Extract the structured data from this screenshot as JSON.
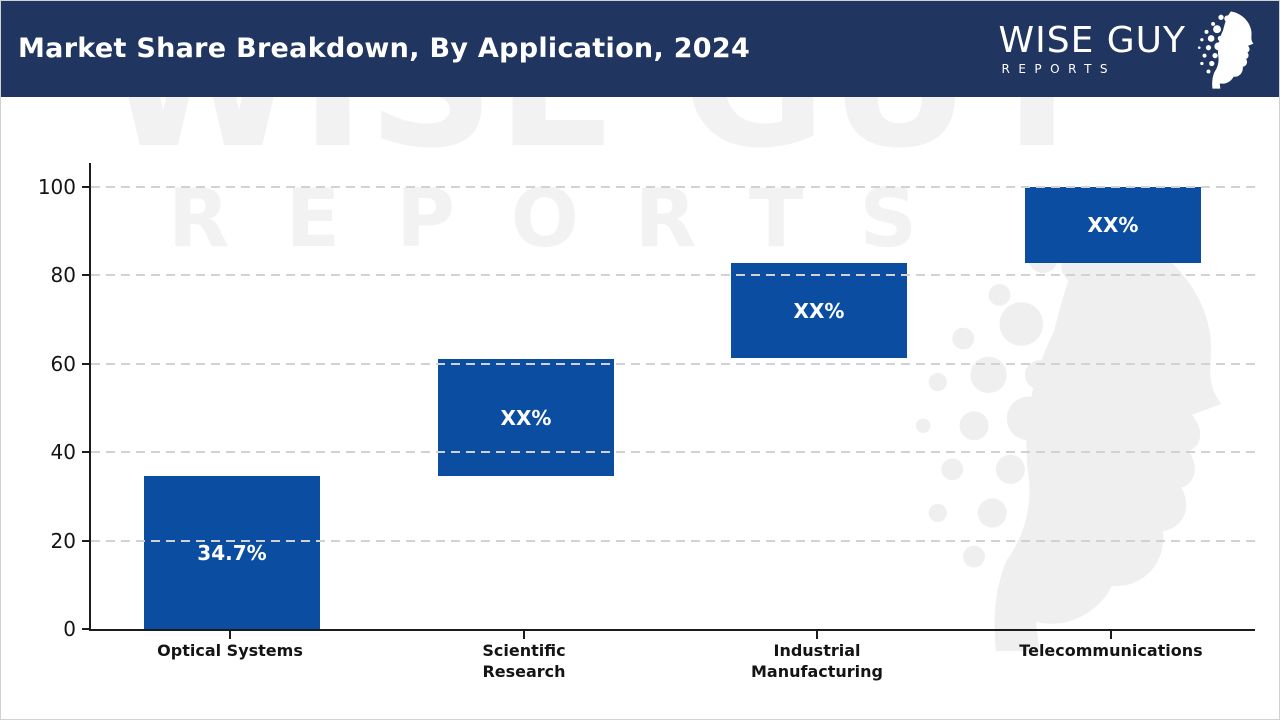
{
  "page": {
    "background": "#ffffff",
    "border_color": "#d2d2d2"
  },
  "header": {
    "bg_color": "#20355f",
    "title": "Market Share Breakdown, By Application, 2024",
    "logo": {
      "name": "WISE GUY",
      "sub": "REPORTS"
    }
  },
  "watermark": {
    "line1": "WISE GUY",
    "line2": "REPORTS"
  },
  "chart_data": {
    "type": "bar",
    "variant": "floating-segment waterfall",
    "title": "Market Share Breakdown, By Application, 2024",
    "categories": [
      "Optical Systems",
      "Scientific Research",
      "Industrial Manufacturing",
      "Telecommunications"
    ],
    "category_label_lines": [
      [
        "Optical Systems"
      ],
      [
        "Scientific",
        "Research"
      ],
      [
        "Industrial",
        "Manufacturing"
      ],
      [
        "Telecommunications"
      ]
    ],
    "series": [
      {
        "name": "Market share (%)",
        "segments": [
          {
            "category": "Optical Systems",
            "start": 0,
            "end": 34.7,
            "label": "34.7%"
          },
          {
            "category": "Scientific Research",
            "start": 34.7,
            "end": 61.2,
            "label": "XX%"
          },
          {
            "category": "Industrial Manufacturing",
            "start": 61.2,
            "end": 82.8,
            "label": "XX%"
          },
          {
            "category": "Telecommunications",
            "start": 82.8,
            "end": 100,
            "label": "XX%"
          }
        ]
      }
    ],
    "ylim": [
      0,
      100
    ],
    "yticks": [
      0,
      20,
      40,
      60,
      80,
      100
    ],
    "xlabel": "",
    "ylabel": "",
    "grid": "horizontal dashed, drawn over bars",
    "legend": "none",
    "bar_color": "#0b4da1",
    "bar_label_color": "#ffffff",
    "axis_color": "#1c1c1c"
  }
}
